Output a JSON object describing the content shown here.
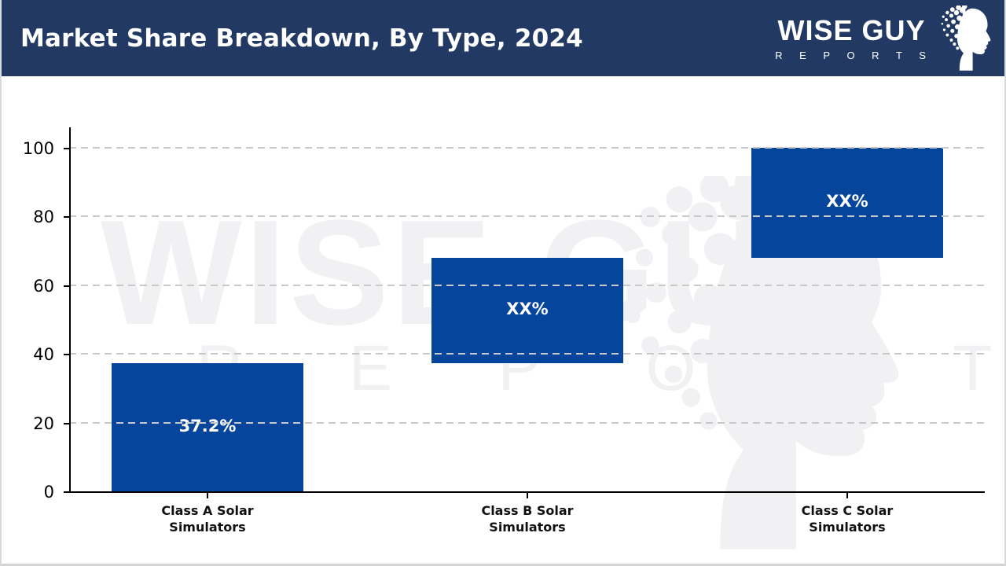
{
  "header": {
    "title": "Market Share Breakdown, By Type, 2024",
    "logo": {
      "line1": "WISE GUY",
      "line2": "R E P O R T S"
    }
  },
  "watermark": {
    "line1": "WISE GUY",
    "line2": "R E P O R T S"
  },
  "colors": {
    "header_bg": "#223A63",
    "bar_blue": "#05459B",
    "grid_gray": "#c9c9c9",
    "watermark_gray": "#f1f1f4",
    "bar_label_white": "#ffffff",
    "axis_black": "#000000"
  },
  "chart_data": {
    "type": "bar",
    "subtype": "stacked-waterfall-percentage",
    "title": "Market Share Breakdown, By Type, 2024",
    "categories": [
      "Class A Solar Simulators",
      "Class B Solar Simulators",
      "Class C Solar Simulators"
    ],
    "segments": [
      {
        "category": "Class A Solar Simulators",
        "start": 0,
        "end": 37.2,
        "label": "37.2%"
      },
      {
        "category": "Class B Solar Simulators",
        "start": 37.2,
        "end": 68,
        "label": "XX%"
      },
      {
        "category": "Class C Solar Simulators",
        "start": 68,
        "end": 100,
        "label": "XX%"
      }
    ],
    "yticks": [
      0,
      20,
      40,
      60,
      80,
      100
    ],
    "ylim": [
      0,
      100
    ],
    "xlabel": "",
    "ylabel": "",
    "grid": "dashed-horizontal",
    "legend": "none"
  }
}
